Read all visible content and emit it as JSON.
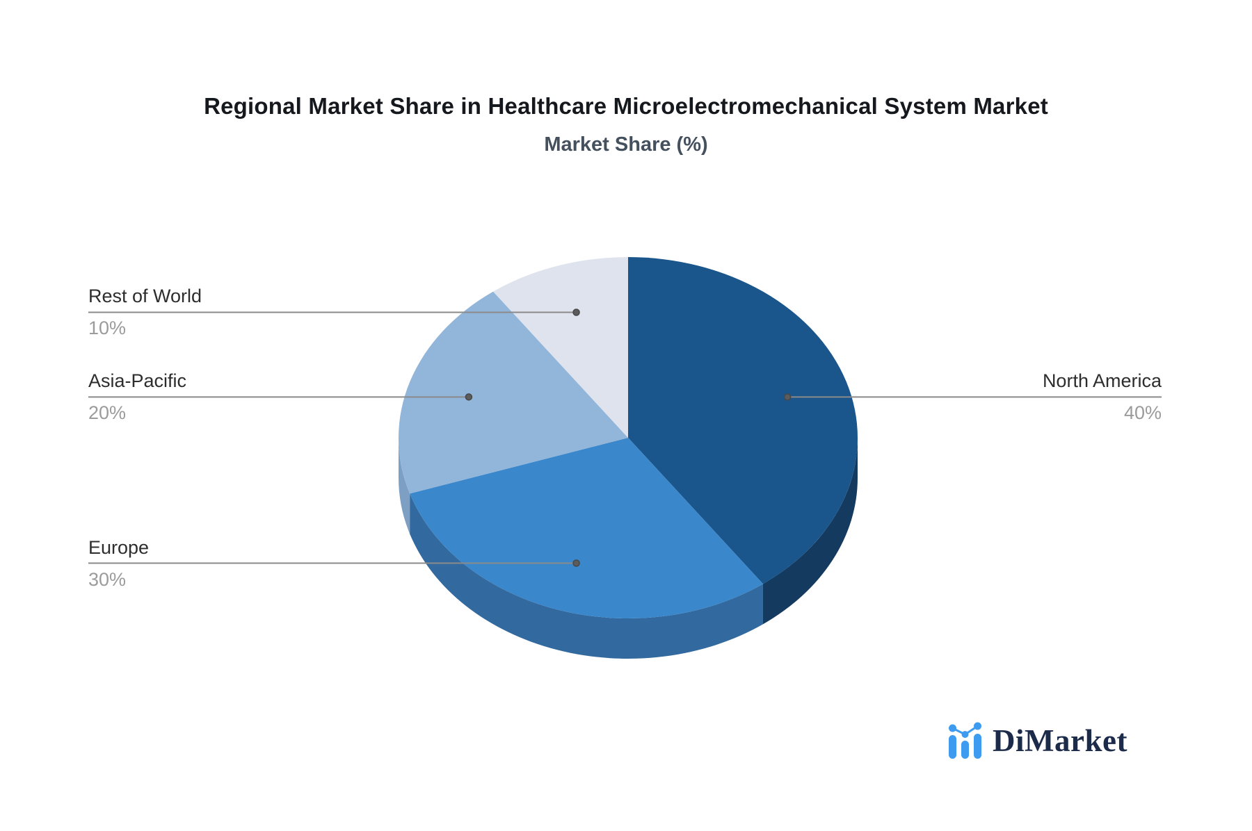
{
  "header": {
    "title": "Regional Market Share in Healthcare Microelectromechanical System Market",
    "subtitle": "Market Share (%)"
  },
  "chart_data": {
    "type": "pie",
    "style": "3d",
    "title": "Regional Market Share in Healthcare Microelectromechanical System Market",
    "subtitle": "Market Share (%)",
    "unit": "%",
    "start_angle": "12 o'clock",
    "direction": "clockwise",
    "slices": [
      {
        "label": "North America",
        "value": 40,
        "display_value": "40%",
        "color": "#1a568c",
        "side_color": "#153a5f",
        "label_side": "right"
      },
      {
        "label": "Europe",
        "value": 30,
        "display_value": "30%",
        "color": "#3a87cb",
        "side_color": "#32699e",
        "label_side": "left"
      },
      {
        "label": "Asia-Pacific",
        "value": 20,
        "display_value": "20%",
        "color": "#92b5da",
        "side_color": "#7e9fc4",
        "label_side": "left"
      },
      {
        "label": "Rest of World",
        "value": 10,
        "display_value": "10%",
        "color": "#dee3ee",
        "side_color": "#c2cbd9",
        "label_side": "left"
      }
    ],
    "legend": "none",
    "leader_line_color": "#8a8a8a",
    "leader_dot_color": "#5c5c5c",
    "label_color": "#2d2d2d",
    "value_color": "#9b9b9b"
  },
  "branding": {
    "logo_text": "DiMarket",
    "logo_icon": "bar-line-chart-icon",
    "logo_accent_color": "#3e9cf0",
    "logo_text_color": "#1c2b4a"
  }
}
